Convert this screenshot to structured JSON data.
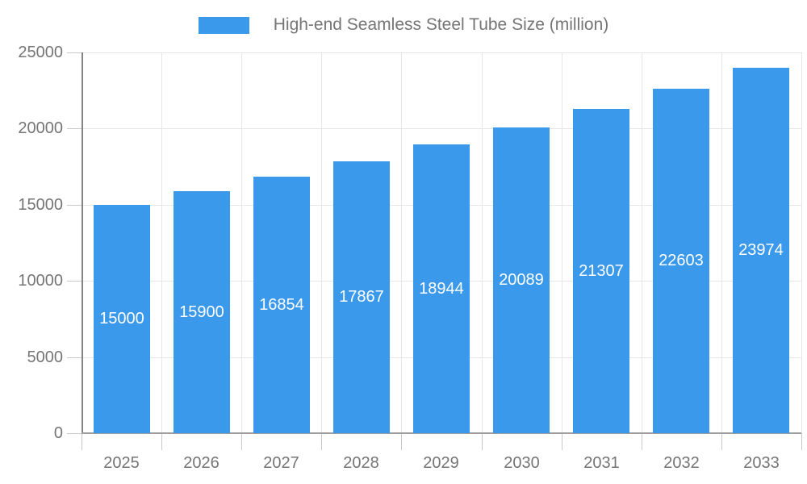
{
  "chart_data": {
    "type": "bar",
    "title": "High-end Seamless Steel Tube Size (million)",
    "categories": [
      "2025",
      "2026",
      "2027",
      "2028",
      "2029",
      "2030",
      "2031",
      "2032",
      "2033"
    ],
    "values": [
      15000,
      15900,
      16854,
      17867,
      18944,
      20089,
      21307,
      22603,
      23974
    ],
    "xlabel": "",
    "ylabel": "",
    "ylim": [
      0,
      25000
    ],
    "yticks": [
      0,
      5000,
      10000,
      15000,
      20000,
      25000
    ],
    "grid": true,
    "legend_position": "top",
    "value_labels_inside_bars": true,
    "colors": {
      "bar": "#3B99EC",
      "value_label": "#ffffff",
      "axis_text": "#757575",
      "gridline": "#e6e6e6",
      "y_axis_line": "#848484",
      "x_axis_line": "#9e9e9e",
      "tick": "#c9c9c9",
      "background": "#ffffff"
    }
  }
}
